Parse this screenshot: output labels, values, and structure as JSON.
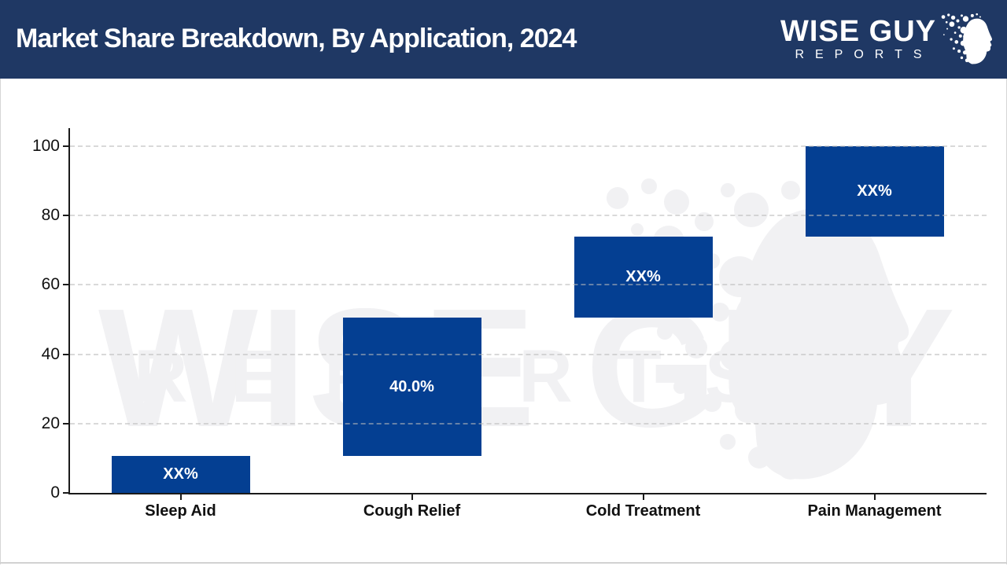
{
  "header": {
    "title": "Market Share Breakdown, By Application, 2024",
    "logo": {
      "line1": "WISE GUY",
      "line2": "REPORTS"
    }
  },
  "watermark": {
    "line1": "WISE GUY",
    "line2": "REPORTS"
  },
  "chart_data": {
    "type": "bar",
    "subtype": "floating_segment_bars",
    "title": "Market Share Breakdown, By Application, 2024",
    "categories": [
      "Sleep Aid",
      "Cough Relief",
      "Cold Treatment",
      "Pain Management"
    ],
    "segments": [
      {
        "from": 0,
        "to": 10.6,
        "label": "XX%"
      },
      {
        "from": 10.6,
        "to": 50.6,
        "label": "40.0%"
      },
      {
        "from": 50.6,
        "to": 74,
        "label": "XX%"
      },
      {
        "from": 74,
        "to": 100,
        "label": "XX%"
      }
    ],
    "ylim": [
      0,
      100
    ],
    "yticks": [
      0,
      20,
      40,
      60,
      80,
      100
    ],
    "grid": "horizontal-dashed",
    "legend": "none",
    "bar_color": "#043f92",
    "bar_label_color": "#ffffff",
    "axis_color": "#1a1a1a"
  }
}
